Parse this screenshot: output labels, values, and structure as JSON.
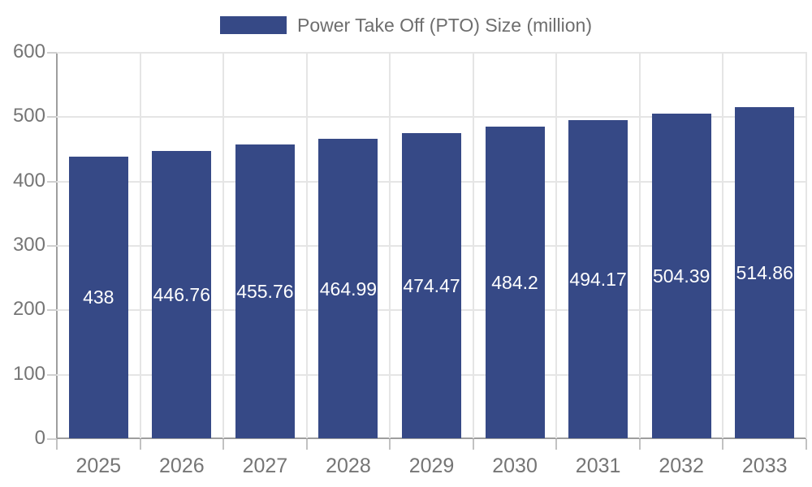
{
  "legend": {
    "label": "Power Take Off (PTO) Size (million)"
  },
  "chart_data": {
    "type": "bar",
    "title": "",
    "xlabel": "",
    "ylabel": "",
    "series_name": "Power Take Off (PTO) Size (million)",
    "categories": [
      "2025",
      "2026",
      "2027",
      "2028",
      "2029",
      "2030",
      "2031",
      "2032",
      "2033"
    ],
    "values": [
      438,
      446.76,
      455.76,
      464.99,
      474.47,
      484.2,
      494.17,
      504.39,
      514.86
    ],
    "value_labels": [
      "438",
      "446.76",
      "455.76",
      "464.99",
      "474.47",
      "484.2",
      "494.17",
      "504.39",
      "514.86"
    ],
    "ylim": [
      0,
      600
    ],
    "yticks": [
      0,
      100,
      200,
      300,
      400,
      500,
      600
    ],
    "grid": true,
    "legend_position": "top",
    "colors": {
      "bar": "#364986",
      "grid": "#e5e5e5",
      "axis": "#9e9e9e",
      "y_tick": "#cfcfcf",
      "x_tick": "#c2c2c2",
      "axis_label": "#757575",
      "legend_text": "#6e6e6e",
      "data_label": "#ffffff",
      "background": "#ffffff"
    }
  }
}
